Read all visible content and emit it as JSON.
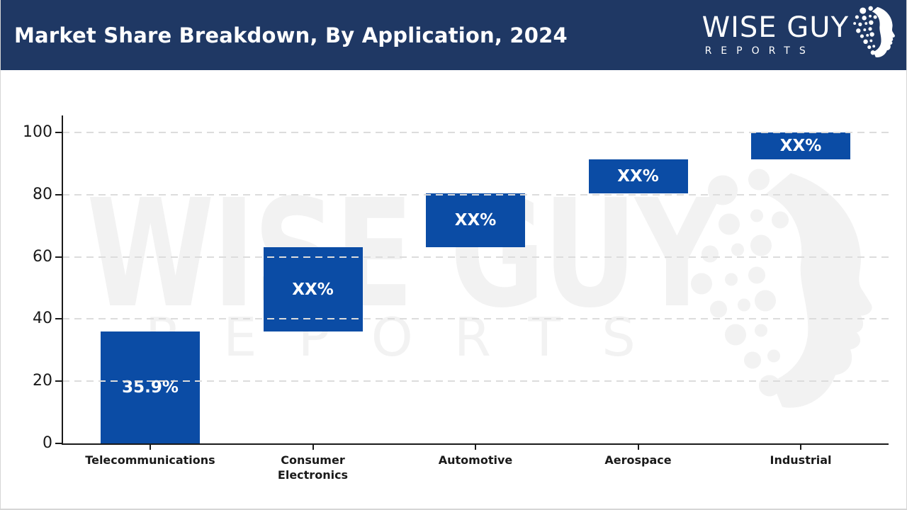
{
  "header": {
    "title": "Market Share Breakdown, By Application, 2024",
    "logo": {
      "line1": "WISE GUY",
      "line2": "REPORTS"
    }
  },
  "watermark": {
    "line1": "WISE GUY",
    "line2": "REPORTS"
  },
  "colors": {
    "header_bg": "#1f3864",
    "bar": "#0b4ca5",
    "bar_label": "#ffffff",
    "grid": "#dcdcdc",
    "axis": "#1a1a1a",
    "watermark": "#f2f2f2"
  },
  "chart_data": {
    "type": "bar",
    "subtype": "waterfall",
    "title": "Market Share Breakdown, By Application, 2024",
    "categories": [
      "Telecommunications",
      "Consumer Electronics",
      "Automotive",
      "Aerospace",
      "Industrial"
    ],
    "bars": [
      {
        "category": "Telecommunications",
        "start": 0,
        "end": 35.9,
        "label": "35.9%"
      },
      {
        "category": "Consumer Electronics",
        "start": 35.9,
        "end": 63.0,
        "label": "XX%"
      },
      {
        "category": "Automotive",
        "start": 63.0,
        "end": 80.5,
        "label": "XX%"
      },
      {
        "category": "Aerospace",
        "start": 80.5,
        "end": 91.3,
        "label": "XX%"
      },
      {
        "category": "Industrial",
        "start": 91.3,
        "end": 100,
        "label": "XX%"
      }
    ],
    "xlabel": "",
    "ylabel": "",
    "ylim": [
      0,
      105
    ],
    "yticks": [
      0,
      20,
      40,
      60,
      80,
      100
    ],
    "grid": "horizontal-dashed",
    "legend": "none"
  }
}
